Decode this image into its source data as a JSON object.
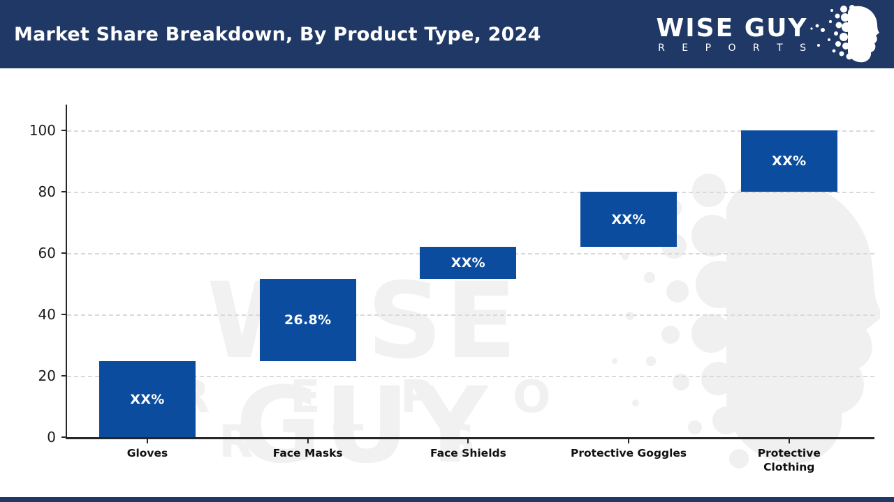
{
  "header": {
    "title": "Market Share Breakdown, By Product Type, 2024",
    "logo": {
      "line1": "WISE GUY",
      "line2": "R E P O R T S"
    }
  },
  "watermark": {
    "line1": "WISE GUY",
    "line2": "R E P O R T S"
  },
  "footer": {},
  "colors": {
    "header_bg": "#1f3866",
    "bar_blue": "#0b4c9f",
    "axis": "#262626",
    "gridline": "#d9d9d9",
    "watermark": "#f1f1f1"
  },
  "chart_data": {
    "type": "bar",
    "subtype": "waterfall",
    "title": "Market Share Breakdown, By Product Type, 2024",
    "xlabel": "",
    "ylabel": "",
    "categories": [
      "Gloves",
      "Face Masks",
      "Face Shields",
      "Protective Goggles",
      "Protective\nClothing"
    ],
    "segments": [
      {
        "category": "Gloves",
        "start": 0,
        "end": 24.7,
        "value": 24.7,
        "label": "XX%"
      },
      {
        "category": "Face Masks",
        "start": 24.7,
        "end": 51.5,
        "value": 26.8,
        "label": "26.8%"
      },
      {
        "category": "Face Shields",
        "start": 51.5,
        "end": 62,
        "value": 10.5,
        "label": "XX%"
      },
      {
        "category": "Protective Goggles",
        "start": 62,
        "end": 80,
        "value": 18,
        "label": "XX%"
      },
      {
        "category": "Protective Clothing",
        "start": 80,
        "end": 100,
        "value": 20,
        "label": "XX%"
      }
    ],
    "yticks": [
      0,
      20,
      40,
      60,
      80,
      100
    ],
    "ylim": [
      0,
      108
    ],
    "grid": "horizontal-dashed",
    "legend": "none",
    "bar_label_color": "#ffffff"
  }
}
